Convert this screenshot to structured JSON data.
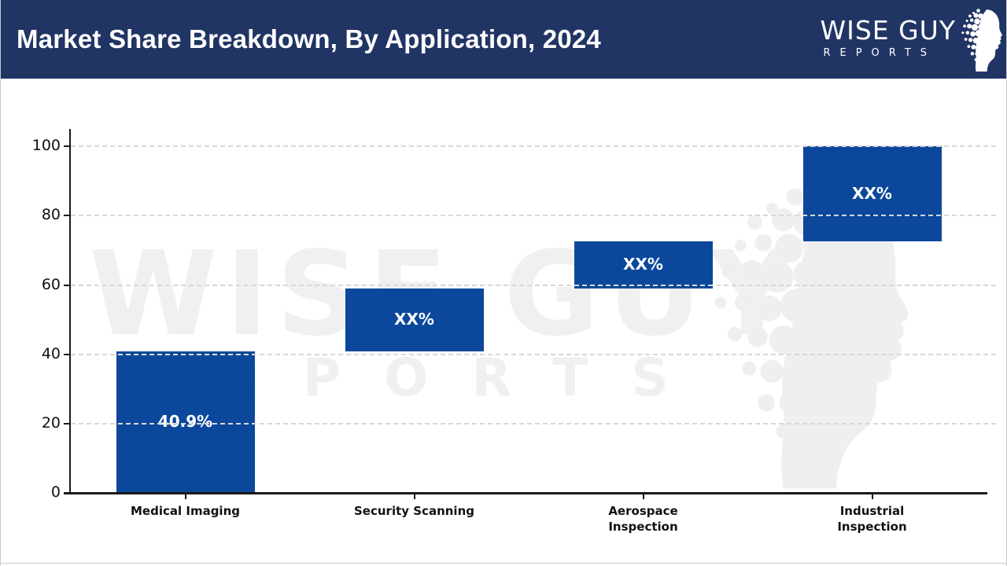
{
  "header": {
    "title": "Market Share Breakdown, By Application, 2024",
    "logo": {
      "line1": "WISE GUY",
      "line2": "REPORTS"
    }
  },
  "watermark": {
    "line1": "WISE GUY",
    "line2": "REPORTS"
  },
  "colors": {
    "header_bg": "#213564",
    "bar": "#0b489b",
    "bar_label": "#ffffff",
    "gridline": "#d8d8d8",
    "axis": "#1a1a1a",
    "watermark": "#f0f0f0"
  },
  "chart_data": {
    "type": "bar",
    "subtype": "waterfall",
    "title": "Market Share Breakdown, By Application, 2024",
    "categories": [
      "Medical Imaging",
      "Security Scanning",
      "Aerospace\nInspection",
      "Industrial\nInspection"
    ],
    "segments": [
      {
        "category": "Medical Imaging",
        "start": 0,
        "end": 40.9,
        "label": "40.9%"
      },
      {
        "category": "Security Scanning",
        "start": 40.9,
        "end": 59.0,
        "label": "XX%"
      },
      {
        "category": "Aerospace\nInspection",
        "start": 59.0,
        "end": 72.6,
        "label": "XX%"
      },
      {
        "category": "Industrial\nInspection",
        "start": 72.6,
        "end": 100.0,
        "label": "XX%"
      }
    ],
    "xlabel": "",
    "ylabel": "",
    "ylim": [
      0,
      100
    ],
    "yticks": [
      0,
      20,
      40,
      60,
      80,
      100
    ],
    "grid": "horizontal-dashed",
    "legend": "none"
  }
}
